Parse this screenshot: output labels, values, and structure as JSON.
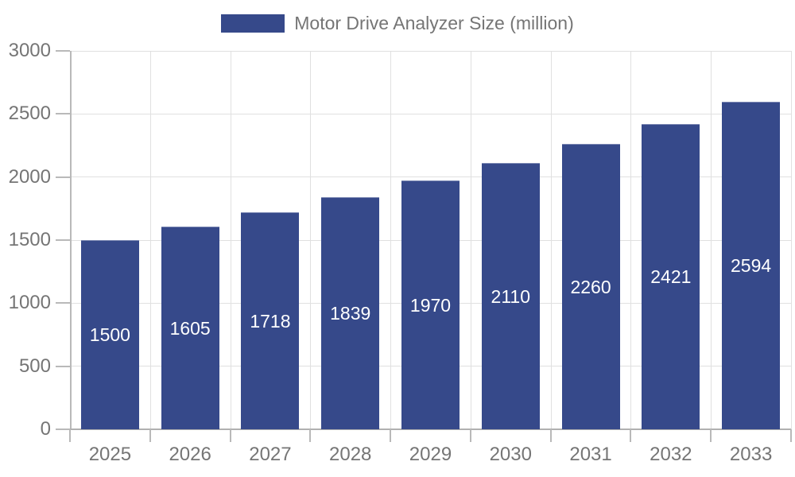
{
  "chart_data": {
    "type": "bar",
    "title": "Motor Drive Analyzer Size (million)",
    "legend_label": "Motor Drive Analyzer Size (million)",
    "legend_position": "top-center",
    "categories": [
      "2025",
      "2026",
      "2027",
      "2028",
      "2029",
      "2030",
      "2031",
      "2032",
      "2033"
    ],
    "values": [
      1500,
      1605,
      1718,
      1839,
      1970,
      2110,
      2260,
      2421,
      2594
    ],
    "xlabel": "",
    "ylabel": "",
    "ylim": [
      0,
      3000
    ],
    "yticks": [
      0,
      500,
      1000,
      1500,
      2000,
      2500,
      3000
    ],
    "grid": true,
    "value_label_position": "inside-center",
    "colors": {
      "bar": "#36498a",
      "grid": "#e0e0e0",
      "axis": "#b0b0b0",
      "tick": "#b9b9b9",
      "axis_label": "#757575",
      "value_label": "#ffffff",
      "background": "#ffffff"
    }
  }
}
